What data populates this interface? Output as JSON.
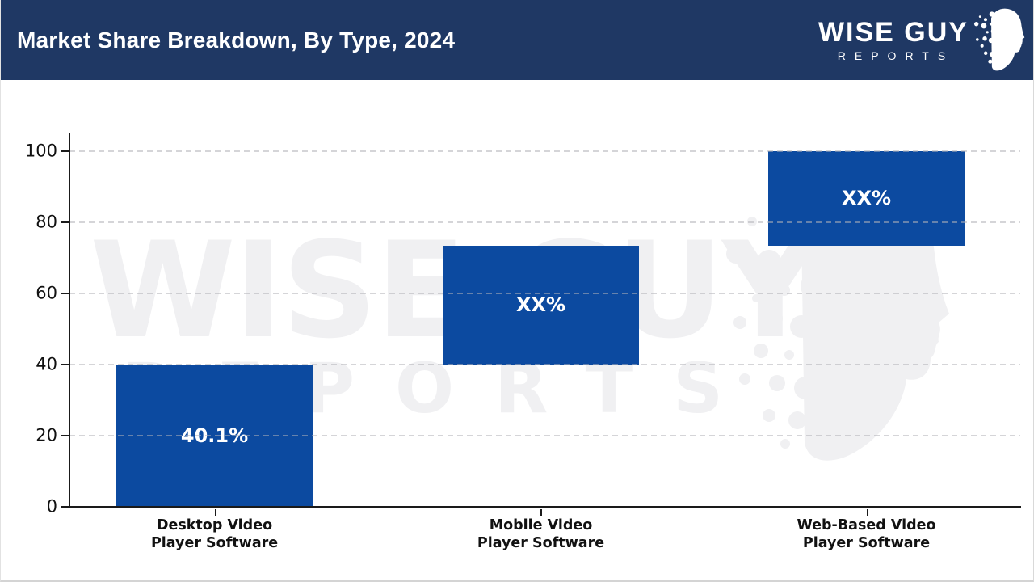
{
  "header": {
    "title": "Market Share Breakdown, By Type, 2024",
    "logo": {
      "line1": "WISE GUY",
      "line2": "REPORTS"
    }
  },
  "watermark": {
    "line1": "WISE GUY",
    "line2": "REPORTS"
  },
  "colors": {
    "header_bg": "#1f3864",
    "bar": "#0c4aa0",
    "axis": "#1a1a1a",
    "watermark": "#f0f0f2",
    "gridline": "#c6c6cb"
  },
  "chart_data": {
    "type": "bar",
    "subtype": "waterfall",
    "title": "Market Share Breakdown, By Type, 2024",
    "categories": [
      [
        "Desktop Video",
        "Player Software"
      ],
      [
        "Mobile Video",
        "Player Software"
      ],
      [
        "Web-Based Video",
        "Player Software"
      ]
    ],
    "series": [
      {
        "name": "Market Share (%)",
        "segments": [
          {
            "start": 0,
            "end": 40.1,
            "label": "40.1%"
          },
          {
            "start": 40.1,
            "end": 73.5,
            "label": "XX%"
          },
          {
            "start": 73.5,
            "end": 100,
            "label": "XX%"
          }
        ]
      }
    ],
    "ylim": [
      0,
      100
    ],
    "yticks": [
      0,
      20,
      40,
      60,
      80,
      100
    ],
    "grid": "horizontal-dashed",
    "legend": "none"
  }
}
